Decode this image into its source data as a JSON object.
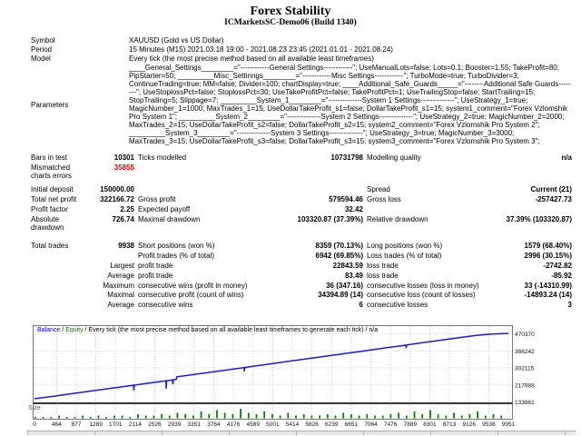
{
  "header": {
    "title": "Forex Stability",
    "subtitle": "ICMarketsSC-Demo06 (Build 1340)"
  },
  "info": {
    "rows": [
      {
        "label": "Symbol",
        "value": "XAUUSD (Gold vs US Dollar)"
      },
      {
        "label": "Period",
        "value": "15 Minutes (M15) 2021.03.18 19:00 - 2021.08.23 23:45 (2021.01.01 - 2021.08.24)"
      },
      {
        "label": "Model",
        "value": "Every tick (the most precise method based on all available least timeframes)"
      },
      {
        "label": "Parameters",
        "value": "____General_Settings________=\"------------General Settings------------\"; UseManualLots=false; Lots=0.1; Booster=1.55; TakeProfit=80; PipStarter=50; _________Misc_Settinngs________=\"------------Misc Settings------------\"; TurboMode=true; TurboDivider=3; ContinueTrading=true; MM=false; Divider=100; chartDisplay=true; ____Additional_Safe_Guards_____=\"--------Additional Safe Guards--------\"; UseStoplossPct=false; StoplossPct=30; UseTakeProfitPct=false; TakeProfitPct=1; UseTrailingStop=false; StartTrailing=15; StopTrailing=5; Slippage=7; _________System_1________=\"--------------System 1 Settings--------------\"; UseStrategy_1=true; MagicNumber_1=1000; MaxTrades_1=15; UseDollarTakeProfit_s1=false; DollarTakeProfit_s1=15; system1_comment=\"Forex Vzlomshik Pro System 1\"; _________System_2________=\"--------------System 2 Settings--------------\"; UseStrategy_2=true; MagicNumber_2=2000; MaxTrades_2=15; UseDollarTakeProfit_s2=false; DollarTakeProfit_s2=15; system2_comment=\"Forex Vzlomshik Pro System 2\"; _________System_3________=\"--------------System 3 Settings--------------\"; UseStrategy_3=true; MagicNumber_3=3000; MaxTrades_3=15; UseDollarTakeProfit_s3=false; DollarTakeProfit_s3=15; system3_comment=\"Forex Vzlomshik Pro System 3\";"
      }
    ]
  },
  "stats": {
    "rows": [
      {
        "cells": [
          "Bars in test",
          "10301",
          "Ticks modelled",
          "10731798",
          "Modelling quality",
          "n/a"
        ]
      },
      {
        "cells": [
          "Mismatched charts errors",
          "35855",
          "",
          "",
          "",
          ""
        ],
        "c2error": true
      },
      {
        "spacer": 5
      },
      {
        "cells": [
          "Initial deposit",
          "150000.00",
          "",
          "",
          "Spread",
          "Current (21)"
        ]
      },
      {
        "cells": [
          "Total net profit",
          "322166.72",
          "Gross profit",
          "579594.46",
          "Gross loss",
          "-257427.73"
        ]
      },
      {
        "cells": [
          "Profit factor",
          "2.25",
          "Expected payoff",
          "32.42",
          "",
          ""
        ]
      },
      {
        "cells": [
          "Absolute drawdown",
          "726.74",
          "Maximal drawdown",
          "103320.87 (37.39%)",
          "Relative drawdown",
          "37.39% (103320.87)"
        ]
      },
      {
        "spacer": 10
      },
      {
        "cells": [
          "Total trades",
          "9938",
          "Short positions (won %)",
          "8359 (70.13%)",
          "Long positions (won %)",
          "1579 (68.40%)"
        ]
      },
      {
        "cells": [
          "",
          "",
          "Profit trades (% of total)",
          "6942 (69.85%)",
          "Loss trades (% of total)",
          "2996 (30.15%)"
        ]
      },
      {
        "cells": [
          "",
          "Largest",
          "profit trade",
          "22843.59",
          "loss trade",
          "-2742.82"
        ],
        "c2word": true
      },
      {
        "cells": [
          "",
          "Average",
          "profit trade",
          "83.49",
          "loss trade",
          "-85.92"
        ],
        "c2word": true
      },
      {
        "cells": [
          "",
          "Maximum",
          "consecutive wins (profit in money)",
          "36 (347.16)",
          "consecutive losses (loss in money)",
          "33 (-14310.99)"
        ],
        "c2word": true
      },
      {
        "cells": [
          "",
          "Maximal",
          "consecutive profit (count of wins)",
          "34394.89 (14)",
          "consecutive loss (count of losses)",
          "-14893.24 (14)"
        ],
        "c2word": true
      },
      {
        "cells": [
          "",
          "Average",
          "consecutive wins",
          "6",
          "consecutive losses",
          "3"
        ],
        "c2word": true
      }
    ]
  },
  "chart_data": {
    "type": "line",
    "legend": [
      {
        "text": "Balance",
        "color": "#0000d8"
      },
      {
        "text": " / ",
        "color": "#000000"
      },
      {
        "text": "Equity",
        "color": "#008000"
      },
      {
        "text": " / Every tick (the most precise method based on all available least timeframes to generate each tick) / n/a",
        "color": "#000000"
      }
    ],
    "size_label": "Size",
    "y_ticks": [
      470370,
      386242,
      302115,
      217988,
      133861
    ],
    "x_ticks": [
      0,
      464,
      877,
      1289,
      1701,
      2114,
      2526,
      2939,
      3351,
      3764,
      4176,
      4589,
      5001,
      5414,
      5826,
      6239,
      6651,
      7064,
      7476,
      7889,
      8301,
      8713,
      9126,
      9538,
      9951
    ],
    "x_range": [
      0,
      9951
    ],
    "y_axis_range": [
      133861,
      470370
    ],
    "balance_color": "#1c1cc8",
    "size_bar_color": "#008000",
    "balance_points": [
      [
        0,
        150000
      ],
      [
        200,
        156000
      ],
      [
        400,
        162000
      ],
      [
        600,
        168500
      ],
      [
        800,
        175000
      ],
      [
        1000,
        181500
      ],
      [
        1200,
        188000
      ],
      [
        1400,
        194500
      ],
      [
        1600,
        201000
      ],
      [
        1800,
        207500
      ],
      [
        1950,
        212500
      ],
      [
        2080,
        216500
      ],
      [
        2085,
        191000
      ],
      [
        2095,
        217000
      ],
      [
        2300,
        223500
      ],
      [
        2500,
        230000
      ],
      [
        2650,
        235000
      ],
      [
        2760,
        238500
      ],
      [
        2765,
        200000
      ],
      [
        2775,
        239000
      ],
      [
        2900,
        243000
      ],
      [
        2905,
        222000
      ],
      [
        2915,
        243500
      ],
      [
        2980,
        245500
      ],
      [
        2990,
        258000
      ],
      [
        3200,
        264500
      ],
      [
        3400,
        271000
      ],
      [
        3600,
        277500
      ],
      [
        3800,
        284000
      ],
      [
        4000,
        290500
      ],
      [
        4200,
        297000
      ],
      [
        4400,
        303500
      ],
      [
        4405,
        285000
      ],
      [
        4415,
        304000
      ],
      [
        4600,
        310500
      ],
      [
        4800,
        317000
      ],
      [
        5000,
        323500
      ],
      [
        5200,
        330000
      ],
      [
        5400,
        336500
      ],
      [
        5600,
        343000
      ],
      [
        5800,
        349500
      ],
      [
        6000,
        356000
      ],
      [
        6200,
        362500
      ],
      [
        6400,
        369000
      ],
      [
        6600,
        375500
      ],
      [
        6800,
        382000
      ],
      [
        7000,
        388500
      ],
      [
        7200,
        395000
      ],
      [
        7400,
        401500
      ],
      [
        7600,
        408000
      ],
      [
        7800,
        414500
      ],
      [
        7805,
        400000
      ],
      [
        7815,
        415000
      ],
      [
        8000,
        421500
      ],
      [
        8200,
        428000
      ],
      [
        8400,
        434500
      ],
      [
        8600,
        441000
      ],
      [
        8800,
        447500
      ],
      [
        9000,
        454000
      ],
      [
        9200,
        460500
      ],
      [
        9400,
        465500
      ],
      [
        9600,
        469000
      ],
      [
        9800,
        471000
      ],
      [
        9951,
        472167
      ]
    ],
    "size_bars": [
      1,
      1,
      1,
      2,
      1,
      1,
      2,
      1,
      2,
      1,
      2,
      2,
      1,
      3,
      2,
      2,
      3,
      2,
      4,
      3,
      2,
      5,
      3,
      6,
      4,
      3,
      7,
      4,
      3,
      5,
      3,
      2,
      4,
      2,
      3,
      2,
      2,
      3,
      2,
      4,
      3,
      2,
      3,
      2,
      2,
      3,
      4,
      2,
      5,
      3,
      6,
      3,
      2,
      4,
      2,
      3,
      5,
      2,
      3,
      2
    ]
  }
}
